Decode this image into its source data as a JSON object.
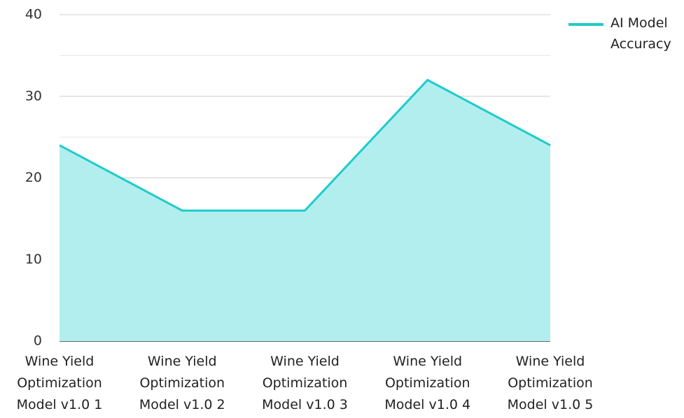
{
  "chart_data": {
    "type": "area",
    "categories": [
      "Wine Yield Optimization Model v1.0 1",
      "Wine Yield Optimization Model v1.0 2",
      "Wine Yield Optimization Model v1.0 3",
      "Wine Yield Optimization Model v1.0 4",
      "Wine Yield Optimization Model v1.0 5"
    ],
    "series": [
      {
        "name": "AI Model Accuracy",
        "color": "#1ecbcb",
        "fill": "#b2eeee",
        "values": [
          24,
          16,
          16,
          32,
          24
        ]
      }
    ],
    "ylim": [
      0,
      40
    ],
    "yticks": [
      0,
      10,
      20,
      30,
      40
    ],
    "minor_yticks": [
      5,
      15,
      25,
      35
    ],
    "grid": true,
    "legend": "top-right"
  }
}
